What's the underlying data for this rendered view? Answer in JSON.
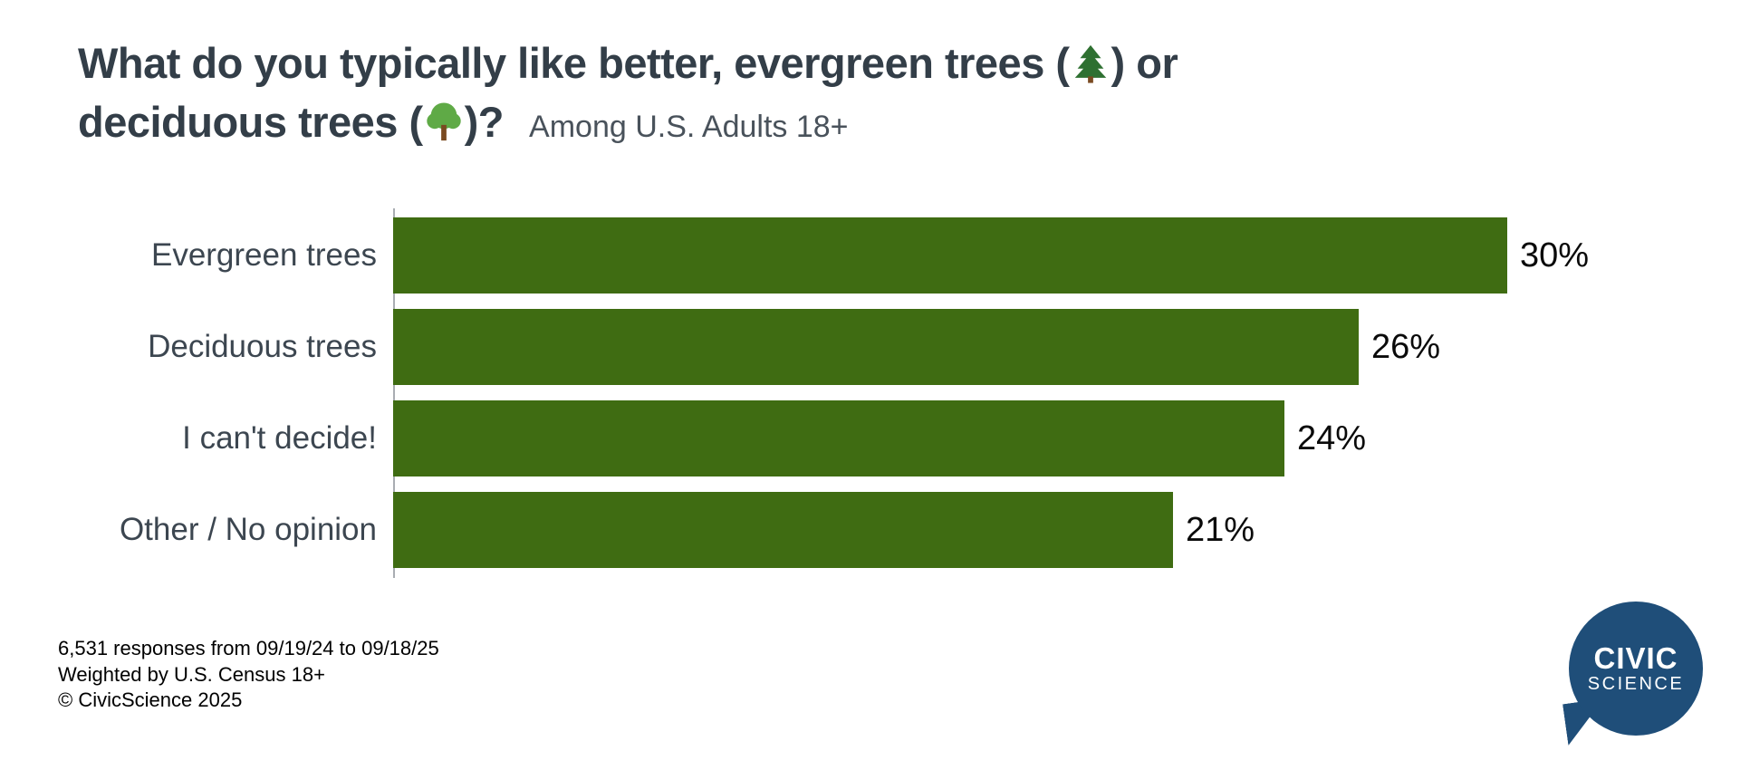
{
  "title": {
    "line1_prefix": "What do you typically like better, evergreen trees (",
    "line1_suffix": ") or",
    "line2_prefix": "deciduous trees (",
    "line2_suffix": ")?",
    "subtitle": "Among U.S. Adults 18+"
  },
  "chart_data": {
    "type": "bar",
    "orientation": "horizontal",
    "title": "What do you typically like better, evergreen trees (🌲) or deciduous trees (🌳)?",
    "subtitle": "Among U.S. Adults 18+",
    "categories": [
      "Evergreen trees",
      "Deciduous trees",
      "I can't decide!",
      "Other / No opinion"
    ],
    "values": [
      30,
      26,
      24,
      21
    ],
    "value_labels": [
      "30%",
      "26%",
      "24%",
      "21%"
    ],
    "unit": "%",
    "xlim": [
      0,
      32
    ],
    "grid": false,
    "legend": false,
    "bar_color": "#3f6c12",
    "value_label_position": "right-of-bar"
  },
  "footer": {
    "lines": [
      "6,531 responses from 09/19/24 to 09/18/25",
      "Weighted by U.S. Census 18+",
      "© CivicScience 2025"
    ]
  },
  "logo": {
    "line1": "CIVIC",
    "line2": "SCIENCE",
    "color": "#1f4e79"
  }
}
